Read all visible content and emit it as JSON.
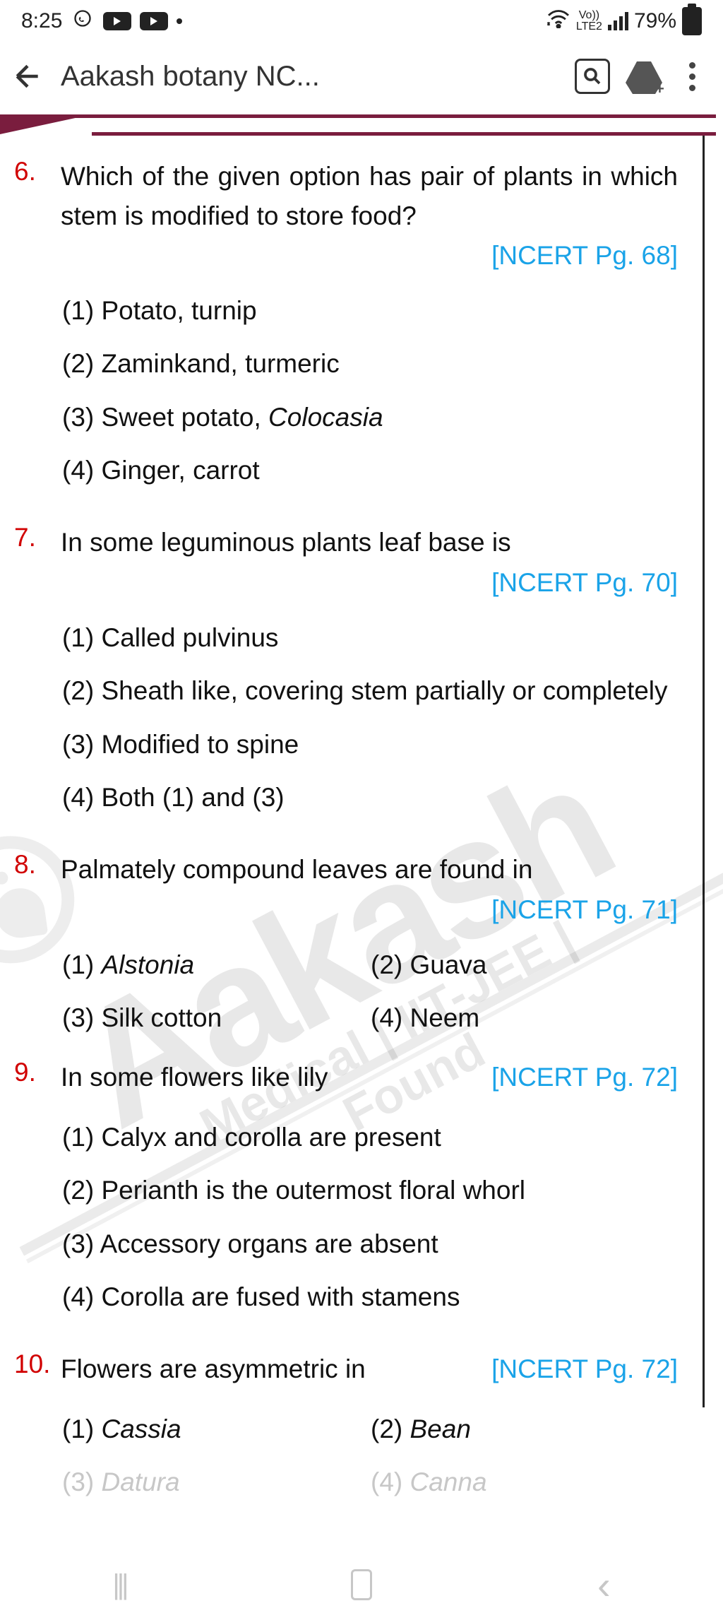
{
  "status": {
    "time": "8:25",
    "net_label_top": "Vo))",
    "net_label_bot": "LTE2",
    "battery": "79%"
  },
  "appbar": {
    "title": "Aakash botany NC..."
  },
  "watermark": {
    "line1": "Aakash",
    "line2": "Medical | IIT-JEE | Found"
  },
  "questions": [
    {
      "num": "6.",
      "text": "Which of the given option has pair of plants in which stem is modified to store food?",
      "ref": "[NCERT Pg. 68]",
      "layout": "list",
      "options": [
        {
          "n": "(1)",
          "t": "Potato, turnip"
        },
        {
          "n": "(2)",
          "t": "Zaminkand, turmeric"
        },
        {
          "n": "(3)",
          "t": "Sweet potato, ",
          "it": "Colocasia"
        },
        {
          "n": "(4)",
          "t": "Ginger, carrot"
        }
      ]
    },
    {
      "num": "7.",
      "text": "In some leguminous plants leaf base is",
      "ref": "[NCERT Pg. 70]",
      "layout": "list",
      "options": [
        {
          "n": "(1)",
          "t": "Called pulvinus"
        },
        {
          "n": "(2)",
          "t": "Sheath like, covering stem partially or completely"
        },
        {
          "n": "(3)",
          "t": "Modified to spine"
        },
        {
          "n": "(4)",
          "t": "Both (1) and (3)"
        }
      ]
    },
    {
      "num": "8.",
      "text": "Palmately compound leaves are found in",
      "ref": "[NCERT Pg. 71]",
      "layout": "grid",
      "options": [
        {
          "n": "(1)",
          "it": "Alstonia"
        },
        {
          "n": "(2)",
          "t": "Guava"
        },
        {
          "n": "(3)",
          "t": "Silk cotton"
        },
        {
          "n": "(4)",
          "t": "Neem"
        }
      ]
    },
    {
      "num": "9.",
      "text": "In some flowers like lily",
      "ref": "[NCERT Pg. 72]",
      "ref_inline": true,
      "layout": "list",
      "options": [
        {
          "n": "(1)",
          "t": "Calyx and corolla are present"
        },
        {
          "n": "(2)",
          "t": "Perianth is the outermost floral whorl"
        },
        {
          "n": "(3)",
          "t": "Accessory organs are absent"
        },
        {
          "n": "(4)",
          "t": "Corolla are fused with stamens"
        }
      ]
    },
    {
      "num": "10.",
      "text": "Flowers are asymmetric in",
      "ref": "[NCERT Pg. 72]",
      "ref_inline": true,
      "layout": "grid",
      "options": [
        {
          "n": "(1)",
          "it": "Cassia"
        },
        {
          "n": "(2)",
          "it": "Bean"
        },
        {
          "n": "(3)",
          "it": "Datura",
          "faded": true
        },
        {
          "n": "(4)",
          "it": "Canna",
          "faded": true
        }
      ]
    }
  ]
}
